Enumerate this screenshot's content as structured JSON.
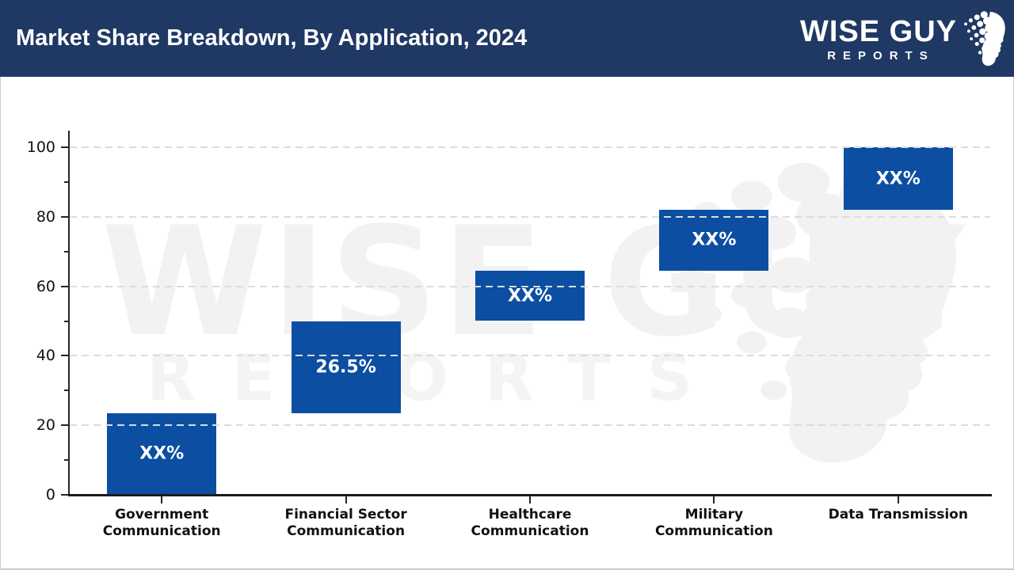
{
  "header": {
    "title": "Market Share Breakdown, By Application, 2024",
    "logo": {
      "brand_line1": "WISE GUY",
      "brand_line2": "REPORTS"
    }
  },
  "watermark": {
    "line1": "WISE GUY",
    "line2": "REPORTS"
  },
  "colors": {
    "header_bg": "#1f3864",
    "bar_fill": "#0b4ea2",
    "bar_label": "#ffffff",
    "axis": "#262626",
    "tick_label": "#111111",
    "gridline": "#dcdcdc",
    "watermark": "#f2f2f2"
  },
  "chart_data": {
    "type": "bar",
    "subtype": "waterfall-floating-segments",
    "title": "Market Share Breakdown, By Application, 2024",
    "categories": [
      [
        "Government",
        "Communication"
      ],
      [
        "Financial Sector",
        "Communication"
      ],
      [
        "Healthcare",
        "Communication"
      ],
      [
        "Military",
        "Communication"
      ],
      [
        "Data Transmission"
      ]
    ],
    "bars": [
      {
        "category": "Government Communication",
        "label": "XX%",
        "start": 0,
        "end": 23.5
      },
      {
        "category": "Financial Sector Communication",
        "label": "26.5%",
        "start": 23.5,
        "end": 50,
        "value": 26.5
      },
      {
        "category": "Healthcare Communication",
        "label": "XX%",
        "start": 50,
        "end": 64.5
      },
      {
        "category": "Military Communication",
        "label": "XX%",
        "start": 64.5,
        "end": 82
      },
      {
        "category": "Data Transmission",
        "label": "XX%",
        "start": 82,
        "end": 100
      }
    ],
    "segment_values_estimated": [
      23.5,
      26.5,
      14.5,
      17.5,
      18
    ],
    "ylim": [
      0,
      100
    ],
    "yticks_major": [
      0,
      20,
      40,
      60,
      80,
      100
    ],
    "yticks_minor_step": 10,
    "grid": "horizontal-dashed",
    "legend": "none",
    "xlabel": "",
    "ylabel": ""
  }
}
